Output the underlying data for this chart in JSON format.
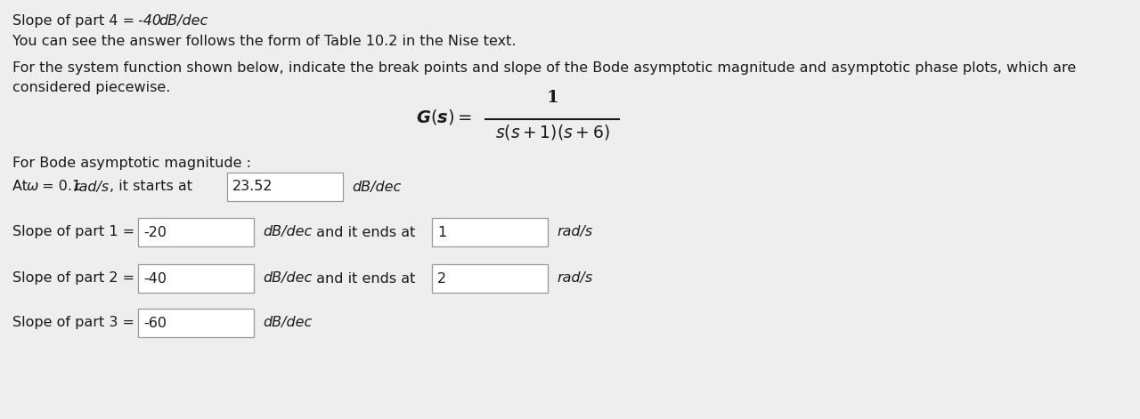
{
  "bg_color": "#eeeeee",
  "line1_normal": "Slope of part 4 =",
  "line1_italic": "-40 dB/dec",
  "line2": "You can see the answer follows the form of Table 10.2 in the Nise text.",
  "line3": "For the system function shown below, indicate the break points and slope of the Bode asymptotic magnitude and asymptotic phase plots, which are",
  "line3b": "considered piecewise.",
  "bode_label": "For Bode asymptotic magnitude :",
  "omega_text": "At ω = 0.1rad/s, it starts at",
  "omega_value": "23.52",
  "omega_unit": "dB/dec",
  "slope1_label": "Slope of part 1 =",
  "slope1_value": "-20",
  "slope1_unit": "dB/dec and it ends at",
  "ends1_value": "1",
  "ends1_unit": "rad/s",
  "slope2_label": "Slope of part 2 =",
  "slope2_value": "-40",
  "slope2_unit": "dB/dec and it ends at",
  "ends2_value": "2",
  "ends2_unit": "rad/s",
  "slope3_label": "Slope of part 3 =",
  "slope3_value": "-60",
  "slope3_unit": "dB/dec",
  "text_color": "#1a1a1a",
  "box_color": "#ffffff",
  "box_edge_color": "#999999"
}
